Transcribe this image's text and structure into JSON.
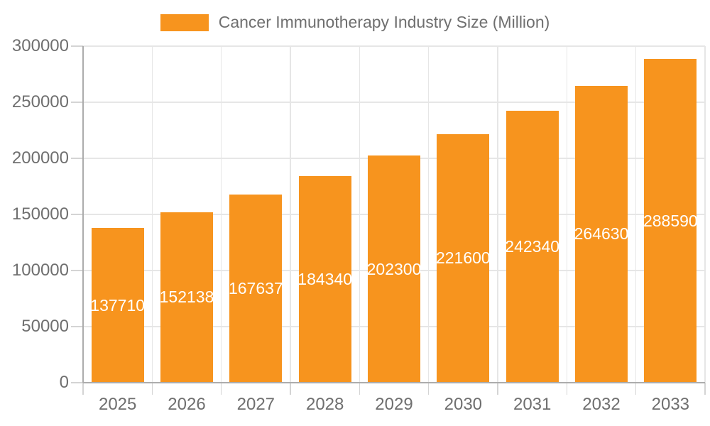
{
  "legend": {
    "label": "Cancer Immunotherapy Industry Size (Million)"
  },
  "chart_data": {
    "type": "bar",
    "title": "Cancer Immunotherapy Industry Size (Million)",
    "categories": [
      "2025",
      "2026",
      "2027",
      "2028",
      "2029",
      "2030",
      "2031",
      "2032",
      "2033"
    ],
    "series": [
      {
        "name": "Cancer Immunotherapy Industry Size (Million)",
        "color": "#F7941E",
        "values": [
          137710,
          152138,
          167637,
          184340,
          202300,
          221600,
          242340,
          264630,
          288590
        ]
      }
    ],
    "value_labels": "inside-center-white",
    "xlabel": "",
    "ylabel": "",
    "ylim": [
      0,
      300000
    ],
    "yticks": [
      0,
      50000,
      100000,
      150000,
      200000,
      250000,
      300000
    ],
    "grid": true,
    "legend_position": "top-center"
  },
  "colors": {
    "bar": "#F7941E",
    "axis_line": "#ACACAC",
    "grid_line": "#E6E6E6",
    "tick_mark": "#D4D4D4",
    "axis_text": "#6F6F6F",
    "value_label_text": "#FFFFFF",
    "background": "#FFFFFF"
  }
}
